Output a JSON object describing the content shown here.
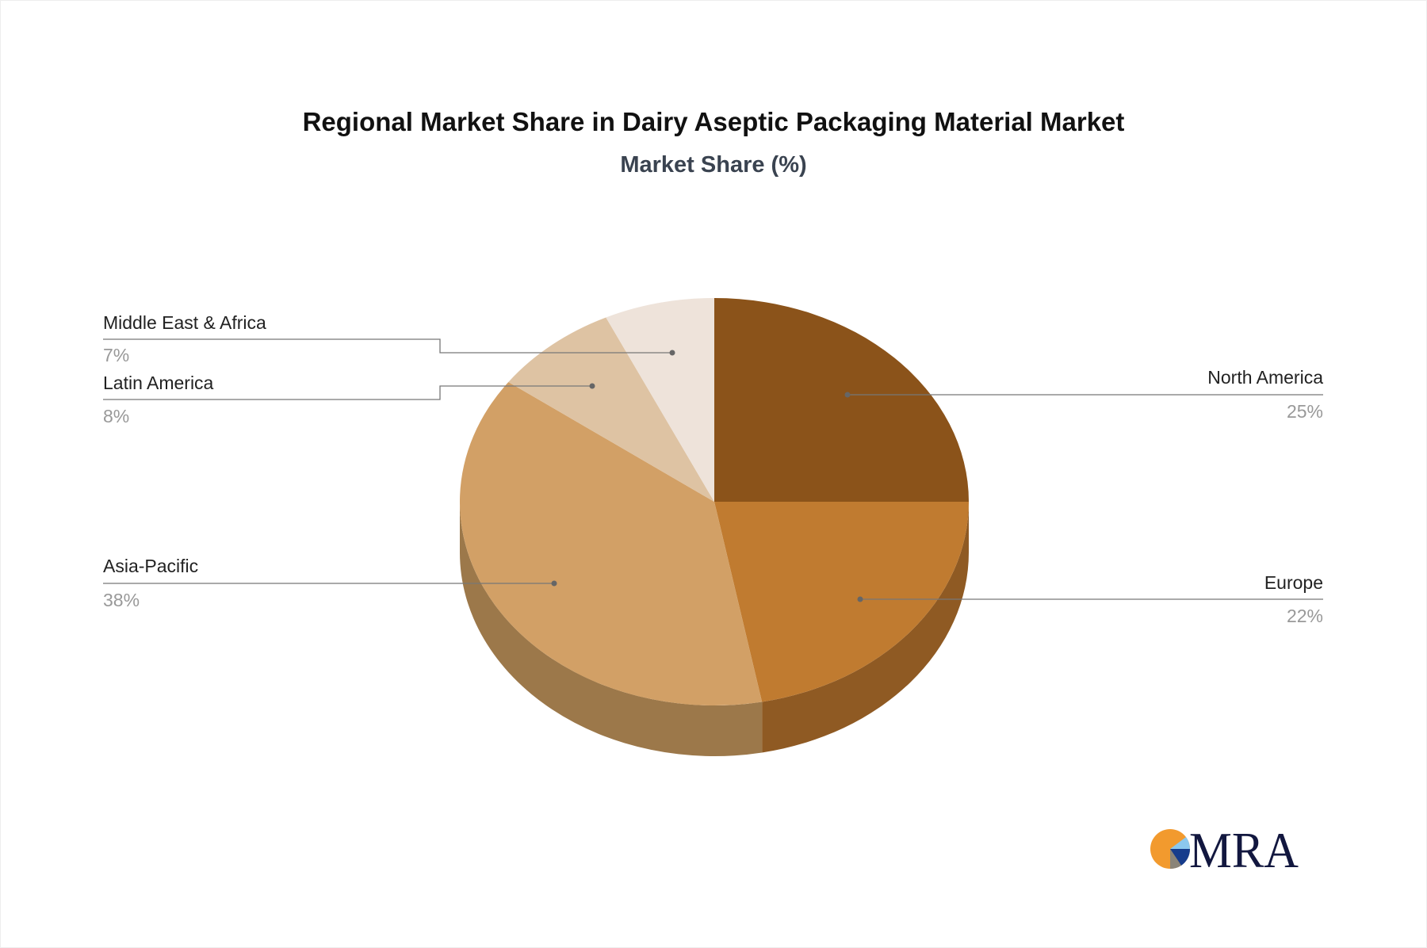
{
  "chart_data": {
    "type": "pie",
    "title": "Regional Market Share in Dairy Aseptic Packaging Material Market",
    "subtitle": "Market Share (%)",
    "slices": [
      {
        "label": "North America",
        "value": 25,
        "value_label": "25%",
        "color": "#8B531A",
        "side_color": "#8B531A"
      },
      {
        "label": "Europe",
        "value": 22,
        "value_label": "22%",
        "color": "#C07B30",
        "side_color": "#8F5A23"
      },
      {
        "label": "Asia-Pacific",
        "value": 38,
        "value_label": "38%",
        "color": "#D2A066",
        "side_color": "#9C784A"
      },
      {
        "label": "Latin America",
        "value": 8,
        "value_label": "8%",
        "color": "#DEC3A3",
        "side_color": "#A68B6A"
      },
      {
        "label": "Middle East & Africa",
        "value": 7,
        "value_label": "7%",
        "color": "#EEE3DA",
        "side_color": "#B2A598"
      }
    ],
    "style": "3d-pie"
  },
  "logo": {
    "text": "MRA",
    "colors": [
      "#F29A2E",
      "#8CC8EE",
      "#163C8C",
      "#8A8478",
      "#12173F"
    ]
  }
}
